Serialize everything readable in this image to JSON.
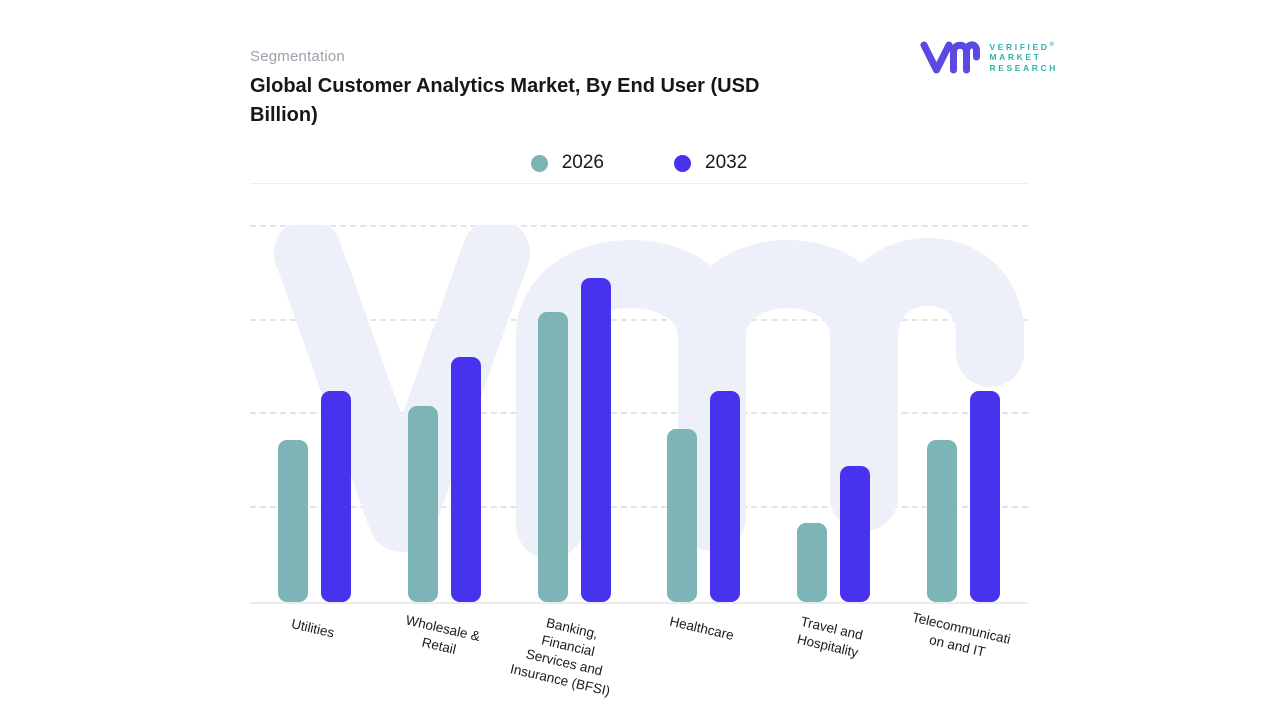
{
  "header": {
    "eyebrow": "Segmentation",
    "title": "Global Customer Analytics Market, By End User (USD Billion)"
  },
  "logo": {
    "brand_lines": [
      "VERIFIED",
      "MARKET",
      "RESEARCH"
    ],
    "registered_mark": "®",
    "glyph_color": "#5b49e3",
    "text_color": "#2eb5aa"
  },
  "legend": {
    "items": [
      {
        "label": "2026",
        "color": "#7db4b6"
      },
      {
        "label": "2032",
        "color": "#4732ee"
      }
    ]
  },
  "chart_data": {
    "type": "bar",
    "title": "Global Customer Analytics Market, By End User (USD Billion)",
    "units": "USD Billion",
    "categories": [
      "Utilities",
      "Wholesale & Retail",
      "Banking, Financial Services and Insurance (BFSI)",
      "Healthcare",
      "Travel and Hospitality",
      "Telecommunication and IT"
    ],
    "category_label_lines": [
      [
        "Utilities"
      ],
      [
        "Wholesale &",
        "Retail"
      ],
      [
        "Banking,",
        "Financial",
        "Services and",
        "Insurance (BFSI)"
      ],
      [
        "Healthcare"
      ],
      [
        "Travel and",
        "Hospitality"
      ],
      [
        "Telecommunicati",
        "on and IT"
      ]
    ],
    "series": [
      {
        "name": "2026",
        "color": "#7db4b6",
        "values": [
          43,
          52,
          77,
          46,
          21,
          43
        ]
      },
      {
        "name": "2032",
        "color": "#4732ee",
        "values": [
          56,
          65,
          86,
          56,
          36,
          56
        ]
      }
    ],
    "xlabel": "",
    "ylabel": "",
    "y_axis": {
      "min": 0,
      "max": 100,
      "tick_labels_visible": false,
      "gridlines": "dashed",
      "gridline_positions_pct": [
        0,
        25,
        49.5,
        74.5
      ],
      "value_scale": "estimated percent of plot height (no numeric axis labels shown in chart)"
    },
    "legend_position": "top-center",
    "watermark": "vmr-logo-glyph",
    "watermark_color": "#eef0f9"
  }
}
